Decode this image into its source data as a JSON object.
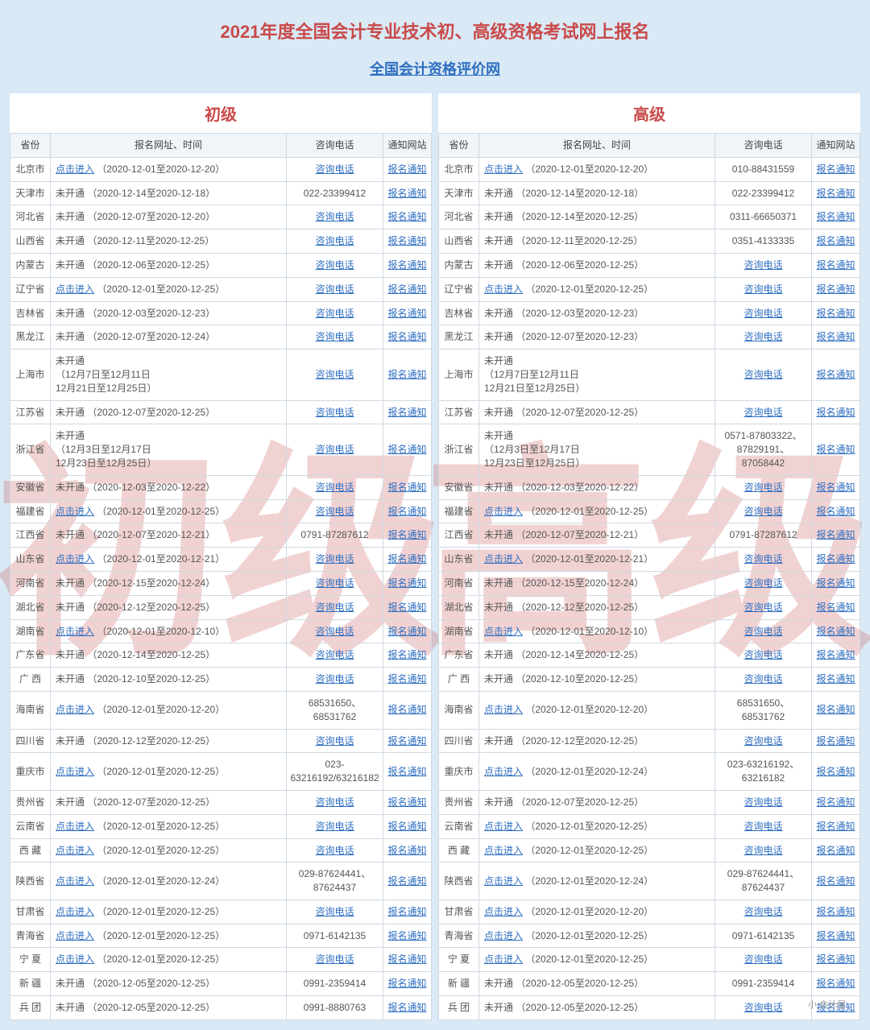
{
  "title": "2021年度全国会计专业技术初、高级资格考试网上报名",
  "subtitle": "全国会计资格评价网",
  "headers": {
    "province": "省份",
    "url_time": "报名网址、时间",
    "phone": "咨询电话",
    "notice": "通知网站"
  },
  "labels": {
    "enter": "点击进入",
    "notopen": "未开通",
    "phone_link": "咨询电话",
    "notice_link": "报名通知"
  },
  "panels": [
    {
      "title": "初级",
      "watermark": "初级",
      "rows": [
        {
          "province": "北京市",
          "open": true,
          "dates": [
            "（2020-12-01至2020-12-20）"
          ],
          "phone_link": true,
          "phone": ""
        },
        {
          "province": "天津市",
          "open": false,
          "dates": [
            "（2020-12-14至2020-12-18）"
          ],
          "phone_link": false,
          "phone": "022-23399412"
        },
        {
          "province": "河北省",
          "open": false,
          "dates": [
            "（2020-12-07至2020-12-20）"
          ],
          "phone_link": true,
          "phone": ""
        },
        {
          "province": "山西省",
          "open": false,
          "dates": [
            "（2020-12-11至2020-12-25）"
          ],
          "phone_link": true,
          "phone": ""
        },
        {
          "province": "内蒙古",
          "open": false,
          "dates": [
            "（2020-12-06至2020-12-25）"
          ],
          "phone_link": true,
          "phone": ""
        },
        {
          "province": "辽宁省",
          "open": true,
          "dates": [
            "（2020-12-01至2020-12-25）"
          ],
          "phone_link": true,
          "phone": ""
        },
        {
          "province": "吉林省",
          "open": false,
          "dates": [
            "（2020-12-03至2020-12-23）"
          ],
          "phone_link": true,
          "phone": ""
        },
        {
          "province": "黑龙江",
          "open": false,
          "dates": [
            "（2020-12-07至2020-12-24）"
          ],
          "phone_link": true,
          "phone": ""
        },
        {
          "province": "上海市",
          "open": false,
          "dates": [
            "（12月7日至12月11日",
            "12月21日至12月25日）"
          ],
          "phone_link": true,
          "phone": "",
          "prefix": true
        },
        {
          "province": "江苏省",
          "open": false,
          "dates": [
            "（2020-12-07至2020-12-25）"
          ],
          "phone_link": true,
          "phone": ""
        },
        {
          "province": "浙江省",
          "open": false,
          "dates": [
            "（12月3日至12月17日",
            "12月23日至12月25日）"
          ],
          "phone_link": true,
          "phone": "",
          "prefix": true
        },
        {
          "province": "安徽省",
          "open": false,
          "dates": [
            "（2020-12-03至2020-12-22）"
          ],
          "phone_link": true,
          "phone": ""
        },
        {
          "province": "福建省",
          "open": true,
          "dates": [
            "（2020-12-01至2020-12-25）"
          ],
          "phone_link": true,
          "phone": ""
        },
        {
          "province": "江西省",
          "open": false,
          "dates": [
            "（2020-12-07至2020-12-21）"
          ],
          "phone_link": false,
          "phone": "0791-87287612"
        },
        {
          "province": "山东省",
          "open": true,
          "dates": [
            "（2020-12-01至2020-12-21）"
          ],
          "phone_link": true,
          "phone": ""
        },
        {
          "province": "河南省",
          "open": false,
          "dates": [
            "（2020-12-15至2020-12-24）"
          ],
          "phone_link": true,
          "phone": ""
        },
        {
          "province": "湖北省",
          "open": false,
          "dates": [
            "（2020-12-12至2020-12-25）"
          ],
          "phone_link": true,
          "phone": ""
        },
        {
          "province": "湖南省",
          "open": true,
          "dates": [
            "（2020-12-01至2020-12-10）"
          ],
          "phone_link": true,
          "phone": ""
        },
        {
          "province": "广东省",
          "open": false,
          "dates": [
            "（2020-12-14至2020-12-25）"
          ],
          "phone_link": true,
          "phone": ""
        },
        {
          "province": "广 西",
          "open": false,
          "dates": [
            "（2020-12-10至2020-12-25）"
          ],
          "phone_link": true,
          "phone": ""
        },
        {
          "province": "海南省",
          "open": true,
          "dates": [
            "（2020-12-01至2020-12-20）"
          ],
          "phone_link": false,
          "phone": "68531650、68531762"
        },
        {
          "province": "四川省",
          "open": false,
          "dates": [
            "（2020-12-12至2020-12-25）"
          ],
          "phone_link": true,
          "phone": ""
        },
        {
          "province": "重庆市",
          "open": true,
          "dates": [
            "（2020-12-01至2020-12-25）"
          ],
          "phone_link": false,
          "phone": "023-63216192/63216182"
        },
        {
          "province": "贵州省",
          "open": false,
          "dates": [
            "（2020-12-07至2020-12-25）"
          ],
          "phone_link": true,
          "phone": ""
        },
        {
          "province": "云南省",
          "open": true,
          "dates": [
            "（2020-12-01至2020-12-25）"
          ],
          "phone_link": true,
          "phone": ""
        },
        {
          "province": "西 藏",
          "open": true,
          "dates": [
            "（2020-12-01至2020-12-25）"
          ],
          "phone_link": true,
          "phone": ""
        },
        {
          "province": "陕西省",
          "open": true,
          "dates": [
            "（2020-12-01至2020-12-24）"
          ],
          "phone_link": false,
          "phone": "029-87624441、87624437"
        },
        {
          "province": "甘肃省",
          "open": true,
          "dates": [
            "（2020-12-01至2020-12-25）"
          ],
          "phone_link": true,
          "phone": ""
        },
        {
          "province": "青海省",
          "open": true,
          "dates": [
            "（2020-12-01至2020-12-25）"
          ],
          "phone_link": false,
          "phone": "0971-6142135"
        },
        {
          "province": "宁 夏",
          "open": true,
          "dates": [
            "（2020-12-01至2020-12-25）"
          ],
          "phone_link": true,
          "phone": ""
        },
        {
          "province": "新 疆",
          "open": false,
          "dates": [
            "（2020-12-05至2020-12-25）"
          ],
          "phone_link": false,
          "phone": "0991-2359414"
        },
        {
          "province": "兵 团",
          "open": false,
          "dates": [
            "（2020-12-05至2020-12-25）"
          ],
          "phone_link": false,
          "phone": "0991-8880763"
        }
      ]
    },
    {
      "title": "高级",
      "watermark": "高级",
      "rows": [
        {
          "province": "北京市",
          "open": true,
          "dates": [
            "（2020-12-01至2020-12-20）"
          ],
          "phone_link": false,
          "phone": "010-88431559"
        },
        {
          "province": "天津市",
          "open": false,
          "dates": [
            "（2020-12-14至2020-12-18）"
          ],
          "phone_link": false,
          "phone": "022-23399412"
        },
        {
          "province": "河北省",
          "open": false,
          "dates": [
            "（2020-12-14至2020-12-25）"
          ],
          "phone_link": false,
          "phone": "0311-66650371"
        },
        {
          "province": "山西省",
          "open": false,
          "dates": [
            "（2020-12-11至2020-12-25）"
          ],
          "phone_link": false,
          "phone": "0351-4133335"
        },
        {
          "province": "内蒙古",
          "open": false,
          "dates": [
            "（2020-12-06至2020-12-25）"
          ],
          "phone_link": true,
          "phone": ""
        },
        {
          "province": "辽宁省",
          "open": true,
          "dates": [
            "（2020-12-01至2020-12-25）"
          ],
          "phone_link": true,
          "phone": ""
        },
        {
          "province": "吉林省",
          "open": false,
          "dates": [
            "（2020-12-03至2020-12-23）"
          ],
          "phone_link": true,
          "phone": ""
        },
        {
          "province": "黑龙江",
          "open": false,
          "dates": [
            "（2020-12-07至2020-12-23）"
          ],
          "phone_link": true,
          "phone": ""
        },
        {
          "province": "上海市",
          "open": false,
          "dates": [
            "（12月7日至12月11日",
            "12月21日至12月25日）"
          ],
          "phone_link": true,
          "phone": "",
          "prefix": true
        },
        {
          "province": "江苏省",
          "open": false,
          "dates": [
            "（2020-12-07至2020-12-25）"
          ],
          "phone_link": true,
          "phone": ""
        },
        {
          "province": "浙江省",
          "open": false,
          "dates": [
            "（12月3日至12月17日",
            "12月23日至12月25日）"
          ],
          "phone_link": false,
          "phone": "0571-87803322、87829191、87058442",
          "prefix": true
        },
        {
          "province": "安徽省",
          "open": false,
          "dates": [
            "（2020-12-03至2020-12-22）"
          ],
          "phone_link": true,
          "phone": ""
        },
        {
          "province": "福建省",
          "open": true,
          "dates": [
            "（2020-12-01至2020-12-25）"
          ],
          "phone_link": true,
          "phone": ""
        },
        {
          "province": "江西省",
          "open": false,
          "dates": [
            "（2020-12-07至2020-12-21）"
          ],
          "phone_link": false,
          "phone": "0791-87287612"
        },
        {
          "province": "山东省",
          "open": true,
          "dates": [
            "（2020-12-01至2020-12-21）"
          ],
          "phone_link": true,
          "phone": ""
        },
        {
          "province": "河南省",
          "open": false,
          "dates": [
            "（2020-12-15至2020-12-24）"
          ],
          "phone_link": true,
          "phone": ""
        },
        {
          "province": "湖北省",
          "open": false,
          "dates": [
            "（2020-12-12至2020-12-25）"
          ],
          "phone_link": true,
          "phone": ""
        },
        {
          "province": "湖南省",
          "open": true,
          "dates": [
            "（2020-12-01至2020-12-10）"
          ],
          "phone_link": true,
          "phone": ""
        },
        {
          "province": "广东省",
          "open": false,
          "dates": [
            "（2020-12-14至2020-12-25）"
          ],
          "phone_link": true,
          "phone": ""
        },
        {
          "province": "广 西",
          "open": false,
          "dates": [
            "（2020-12-10至2020-12-25）"
          ],
          "phone_link": true,
          "phone": ""
        },
        {
          "province": "海南省",
          "open": true,
          "dates": [
            "（2020-12-01至2020-12-20）"
          ],
          "phone_link": false,
          "phone": "68531650、68531762"
        },
        {
          "province": "四川省",
          "open": false,
          "dates": [
            "（2020-12-12至2020-12-25）"
          ],
          "phone_link": true,
          "phone": ""
        },
        {
          "province": "重庆市",
          "open": true,
          "dates": [
            "（2020-12-01至2020-12-24）"
          ],
          "phone_link": false,
          "phone": "023-63216192、63216182"
        },
        {
          "province": "贵州省",
          "open": false,
          "dates": [
            "（2020-12-07至2020-12-25）"
          ],
          "phone_link": true,
          "phone": ""
        },
        {
          "province": "云南省",
          "open": true,
          "dates": [
            "（2020-12-01至2020-12-25）"
          ],
          "phone_link": true,
          "phone": ""
        },
        {
          "province": "西 藏",
          "open": true,
          "dates": [
            "（2020-12-01至2020-12-25）"
          ],
          "phone_link": true,
          "phone": ""
        },
        {
          "province": "陕西省",
          "open": true,
          "dates": [
            "（2020-12-01至2020-12-24）"
          ],
          "phone_link": false,
          "phone": "029-87624441、87624437"
        },
        {
          "province": "甘肃省",
          "open": true,
          "dates": [
            "（2020-12-01至2020-12-20）"
          ],
          "phone_link": true,
          "phone": ""
        },
        {
          "province": "青海省",
          "open": true,
          "dates": [
            "（2020-12-01至2020-12-25）"
          ],
          "phone_link": false,
          "phone": "0971-6142135"
        },
        {
          "province": "宁 夏",
          "open": true,
          "dates": [
            "（2020-12-01至2020-12-25）"
          ],
          "phone_link": true,
          "phone": ""
        },
        {
          "province": "新 疆",
          "open": false,
          "dates": [
            "（2020-12-05至2020-12-25）"
          ],
          "phone_link": false,
          "phone": "0991-2359414"
        },
        {
          "province": "兵 团",
          "open": false,
          "dates": [
            "（2020-12-05至2020-12-25）"
          ],
          "phone_link": true,
          "phone": ""
        }
      ]
    }
  ],
  "bottom_mark": "小 会计屋"
}
